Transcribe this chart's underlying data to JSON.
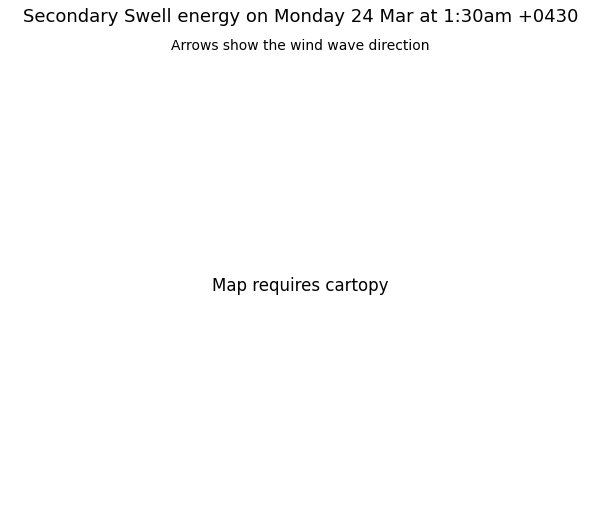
{
  "title": "Secondary Swell energy on Monday 24 Mar at 1:30am +0430",
  "subtitle": "Arrows show the wind wave direction",
  "title_fontsize": 13,
  "subtitle_fontsize": 10,
  "bg_color": "#ffffff",
  "map_bg": "#aaaaaa",
  "border_color": "#000000",
  "water_color": "#000000",
  "figsize": [
    6.01,
    5.1
  ],
  "dpi": 100
}
